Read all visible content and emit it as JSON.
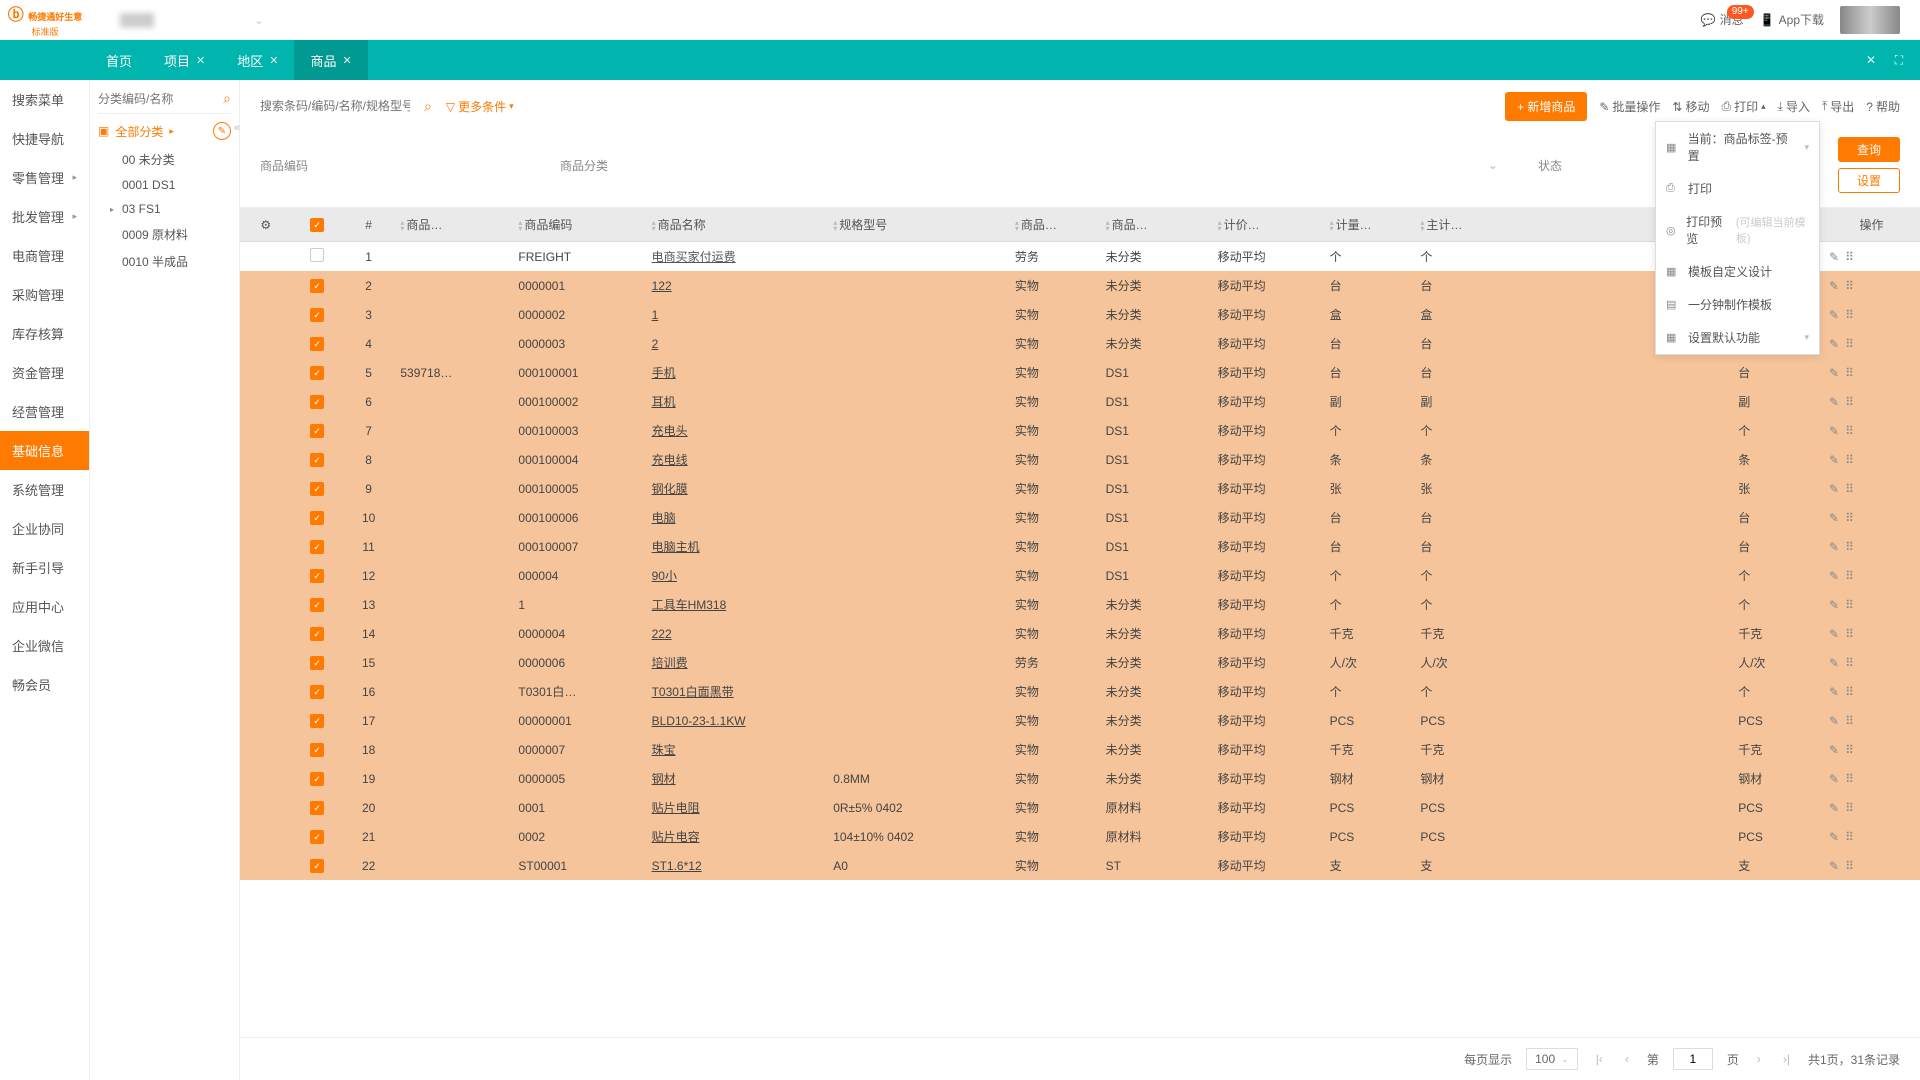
{
  "logo": {
    "brand_top": "畅捷通好生意",
    "brand_sub": "标准版"
  },
  "topbar": {
    "msg_label": "消息",
    "msg_badge": "99+",
    "download_label": "App下载"
  },
  "tabs": [
    {
      "label": "首页",
      "closable": false
    },
    {
      "label": "项目",
      "closable": true
    },
    {
      "label": "地区",
      "closable": true
    },
    {
      "label": "商品",
      "closable": true,
      "active": true
    }
  ],
  "leftnav": [
    {
      "label": "搜索菜单"
    },
    {
      "label": "快捷导航"
    },
    {
      "label": "零售管理",
      "caret": true
    },
    {
      "label": "批发管理",
      "caret": true
    },
    {
      "label": "电商管理"
    },
    {
      "label": "采购管理"
    },
    {
      "label": "库存核算"
    },
    {
      "label": "资金管理"
    },
    {
      "label": "经营管理"
    },
    {
      "label": "基础信息",
      "active": true
    },
    {
      "label": "系统管理"
    },
    {
      "label": "企业协同"
    },
    {
      "label": "新手引导"
    },
    {
      "label": "应用中心"
    },
    {
      "label": "企业微信"
    },
    {
      "label": "畅会员"
    }
  ],
  "cat": {
    "search_placeholder": "分类编码/名称",
    "all_label": "全部分类",
    "items": [
      {
        "label": "00 未分类"
      },
      {
        "label": "0001 DS1"
      },
      {
        "label": "03 FS1",
        "expandable": true
      },
      {
        "label": "0009 原材料"
      },
      {
        "label": "0010 半成品"
      }
    ]
  },
  "toolbar": {
    "search_placeholder": "搜索条码/编码/名称/规格型号/别名",
    "more_cond": "更多条件",
    "new_btn": "+ 新增商品",
    "batch": "批量操作",
    "move": "移动",
    "print": "打印",
    "import": "导入",
    "export": "导出",
    "help": "帮助"
  },
  "filters": {
    "code_label": "商品编码",
    "cat_label": "商品分类",
    "status_label": "状态",
    "query_btn": "查询",
    "set_btn": "设置"
  },
  "print_menu": {
    "current_prefix": "当前：",
    "current_value": "商品标签-预置",
    "items": [
      {
        "icon": "⎙",
        "label": "打印"
      },
      {
        "icon": "◎",
        "label": "打印预览",
        "sub": "(可编辑当前模板)"
      },
      {
        "icon": "▦",
        "label": "模板自定义设计"
      },
      {
        "icon": "▤",
        "label": "一分钟制作模板"
      },
      {
        "icon": "▦",
        "label": "设置默认功能",
        "chev": true
      }
    ]
  },
  "columns": [
    "商品…",
    "商品编码",
    "商品名称",
    "规格型号",
    "商品…",
    "商品…",
    "计价…",
    "计量…",
    "主计…",
    "",
    "销售…",
    "操作"
  ],
  "rows": [
    {
      "n": 1,
      "sel": false,
      "barcode": "",
      "code": "FREIGHT",
      "name": "电商买家付运费",
      "spec": "",
      "type": "劳务",
      "cat": "未分类",
      "pm": "移动平均",
      "u1": "个",
      "u2": "个",
      "su": ""
    },
    {
      "n": 2,
      "sel": true,
      "barcode": "",
      "code": "0000001",
      "name": "122",
      "spec": "",
      "type": "实物",
      "cat": "未分类",
      "pm": "移动平均",
      "u1": "台",
      "u2": "台",
      "su": "台"
    },
    {
      "n": 3,
      "sel": true,
      "barcode": "",
      "code": "0000002",
      "name": "1",
      "spec": "",
      "type": "实物",
      "cat": "未分类",
      "pm": "移动平均",
      "u1": "盒",
      "u2": "盒",
      "su": "盒"
    },
    {
      "n": 4,
      "sel": true,
      "barcode": "",
      "code": "0000003",
      "name": "2",
      "spec": "",
      "type": "实物",
      "cat": "未分类",
      "pm": "移动平均",
      "u1": "台",
      "u2": "台",
      "su": "台"
    },
    {
      "n": 5,
      "sel": true,
      "barcode": "539718…",
      "code": "000100001",
      "name": "手机",
      "spec": "",
      "type": "实物",
      "cat": "DS1",
      "pm": "移动平均",
      "u1": "台",
      "u2": "台",
      "su": "台"
    },
    {
      "n": 6,
      "sel": true,
      "barcode": "",
      "code": "000100002",
      "name": "耳机",
      "spec": "",
      "type": "实物",
      "cat": "DS1",
      "pm": "移动平均",
      "u1": "副",
      "u2": "副",
      "su": "副"
    },
    {
      "n": 7,
      "sel": true,
      "barcode": "",
      "code": "000100003",
      "name": "充电头",
      "spec": "",
      "type": "实物",
      "cat": "DS1",
      "pm": "移动平均",
      "u1": "个",
      "u2": "个",
      "su": "个"
    },
    {
      "n": 8,
      "sel": true,
      "barcode": "",
      "code": "000100004",
      "name": "充电线",
      "spec": "",
      "type": "实物",
      "cat": "DS1",
      "pm": "移动平均",
      "u1": "条",
      "u2": "条",
      "su": "条"
    },
    {
      "n": 9,
      "sel": true,
      "barcode": "",
      "code": "000100005",
      "name": "钢化膜",
      "spec": "",
      "type": "实物",
      "cat": "DS1",
      "pm": "移动平均",
      "u1": "张",
      "u2": "张",
      "su": "张"
    },
    {
      "n": 10,
      "sel": true,
      "barcode": "",
      "code": "000100006",
      "name": "电脑",
      "spec": "",
      "type": "实物",
      "cat": "DS1",
      "pm": "移动平均",
      "u1": "台",
      "u2": "台",
      "su": "台"
    },
    {
      "n": 11,
      "sel": true,
      "barcode": "",
      "code": "000100007",
      "name": "电脑主机",
      "spec": "",
      "type": "实物",
      "cat": "DS1",
      "pm": "移动平均",
      "u1": "台",
      "u2": "台",
      "su": "台"
    },
    {
      "n": 12,
      "sel": true,
      "barcode": "",
      "code": "000004",
      "name": "90小",
      "spec": "",
      "type": "实物",
      "cat": "DS1",
      "pm": "移动平均",
      "u1": "个",
      "u2": "个",
      "su": "个"
    },
    {
      "n": 13,
      "sel": true,
      "barcode": "",
      "code": "1",
      "name": "工具车HM318",
      "spec": "",
      "type": "实物",
      "cat": "未分类",
      "pm": "移动平均",
      "u1": "个",
      "u2": "个",
      "su": "个"
    },
    {
      "n": 14,
      "sel": true,
      "barcode": "",
      "code": "0000004",
      "name": "222",
      "spec": "",
      "type": "实物",
      "cat": "未分类",
      "pm": "移动平均",
      "u1": "千克",
      "u2": "千克",
      "su": "千克"
    },
    {
      "n": 15,
      "sel": true,
      "barcode": "",
      "code": "0000006",
      "name": "培训费",
      "spec": "",
      "type": "劳务",
      "cat": "未分类",
      "pm": "移动平均",
      "u1": "人/次",
      "u2": "人/次",
      "su": "人/次"
    },
    {
      "n": 16,
      "sel": true,
      "barcode": "",
      "code": "T0301白…",
      "name": "T0301白面黑带",
      "spec": "",
      "type": "实物",
      "cat": "未分类",
      "pm": "移动平均",
      "u1": "个",
      "u2": "个",
      "su": "个"
    },
    {
      "n": 17,
      "sel": true,
      "barcode": "",
      "code": "00000001",
      "name": "BLD10-23-1.1KW",
      "spec": "",
      "type": "实物",
      "cat": "未分类",
      "pm": "移动平均",
      "u1": "PCS",
      "u2": "PCS",
      "su": "PCS"
    },
    {
      "n": 18,
      "sel": true,
      "barcode": "",
      "code": "0000007",
      "name": "珠宝",
      "spec": "",
      "type": "实物",
      "cat": "未分类",
      "pm": "移动平均",
      "u1": "千克",
      "u2": "千克",
      "su": "千克"
    },
    {
      "n": 19,
      "sel": true,
      "barcode": "",
      "code": "0000005",
      "name": "钢材",
      "spec": "0.8MM",
      "type": "实物",
      "cat": "未分类",
      "pm": "移动平均",
      "u1": "钢材",
      "u2": "钢材",
      "su": "钢材"
    },
    {
      "n": 20,
      "sel": true,
      "barcode": "",
      "code": "0001",
      "name": "贴片电阻",
      "spec": "0R±5% 0402",
      "type": "实物",
      "cat": "原材料",
      "pm": "移动平均",
      "u1": "PCS",
      "u2": "PCS",
      "su": "PCS"
    },
    {
      "n": 21,
      "sel": true,
      "barcode": "",
      "code": "0002",
      "name": "贴片电容",
      "spec": "104±10% 0402",
      "type": "实物",
      "cat": "原材料",
      "pm": "移动平均",
      "u1": "PCS",
      "u2": "PCS",
      "su": "PCS"
    },
    {
      "n": 22,
      "sel": true,
      "barcode": "",
      "code": "ST00001",
      "name": "ST1.6*12",
      "spec": "A0",
      "type": "实物",
      "cat": "ST",
      "pm": "移动平均",
      "u1": "支",
      "u2": "支",
      "su": "支"
    }
  ],
  "pager": {
    "per_label": "每页显示",
    "per_value": "100",
    "page_prefix": "第",
    "page_value": "1",
    "page_suffix": "页",
    "total": "共1页，31条记录"
  }
}
